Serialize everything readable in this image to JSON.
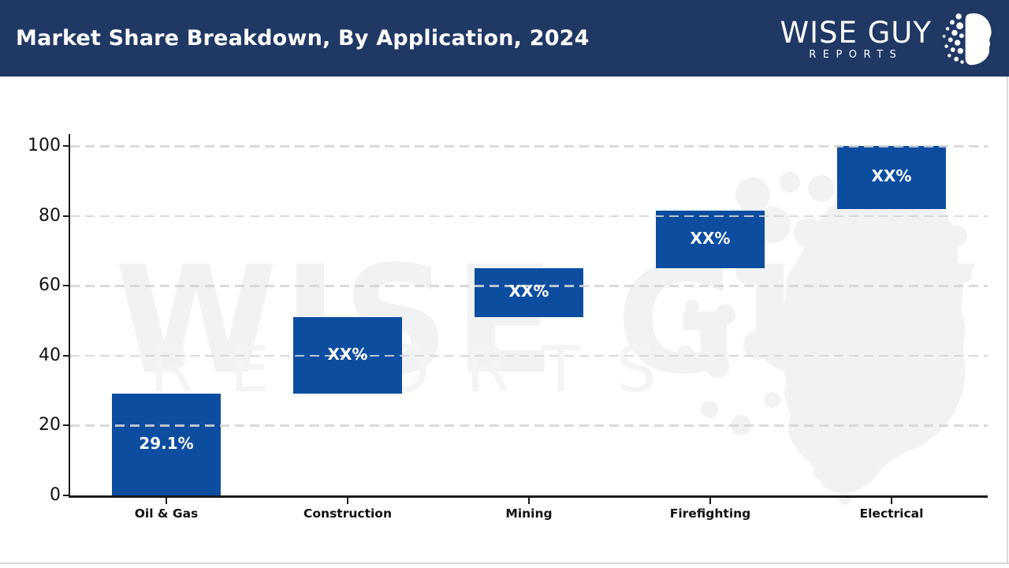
{
  "header": {
    "title": "Market Share Breakdown, By Application, 2024",
    "logo": {
      "line1": "WISE GUY",
      "line2": "REPORTS"
    },
    "bg_color": "#1f3864"
  },
  "watermark": {
    "line1": "WISE GUY",
    "line2": "REPORTS"
  },
  "chart_data": {
    "type": "bar",
    "subtype": "waterfall",
    "title": "Market Share Breakdown, By Application, 2024",
    "categories": [
      "Oil & Gas",
      "Construction",
      "Mining",
      "Firefighting",
      "Electrical"
    ],
    "series": [
      {
        "name": "Market share segment",
        "segments": [
          {
            "category": "Oil & Gas",
            "start": 0,
            "end": 29.1,
            "label": "29.1%"
          },
          {
            "category": "Construction",
            "start": 29.1,
            "end": 51,
            "label": "XX%"
          },
          {
            "category": "Mining",
            "start": 51,
            "end": 65,
            "label": "XX%"
          },
          {
            "category": "Firefighting",
            "start": 65,
            "end": 81.5,
            "label": "XX%"
          },
          {
            "category": "Electrical",
            "start": 82,
            "end": 100,
            "label": "XX%"
          }
        ]
      }
    ],
    "xlabel": "",
    "ylabel": "",
    "ylim": [
      0,
      100
    ],
    "y_ticks": [
      0,
      20,
      40,
      60,
      80,
      100
    ],
    "grid": "horizontal dashed, drawn over bars",
    "legend": "none",
    "bar_color": "#0c4da0",
    "bar_label_color": "#ffffff"
  }
}
